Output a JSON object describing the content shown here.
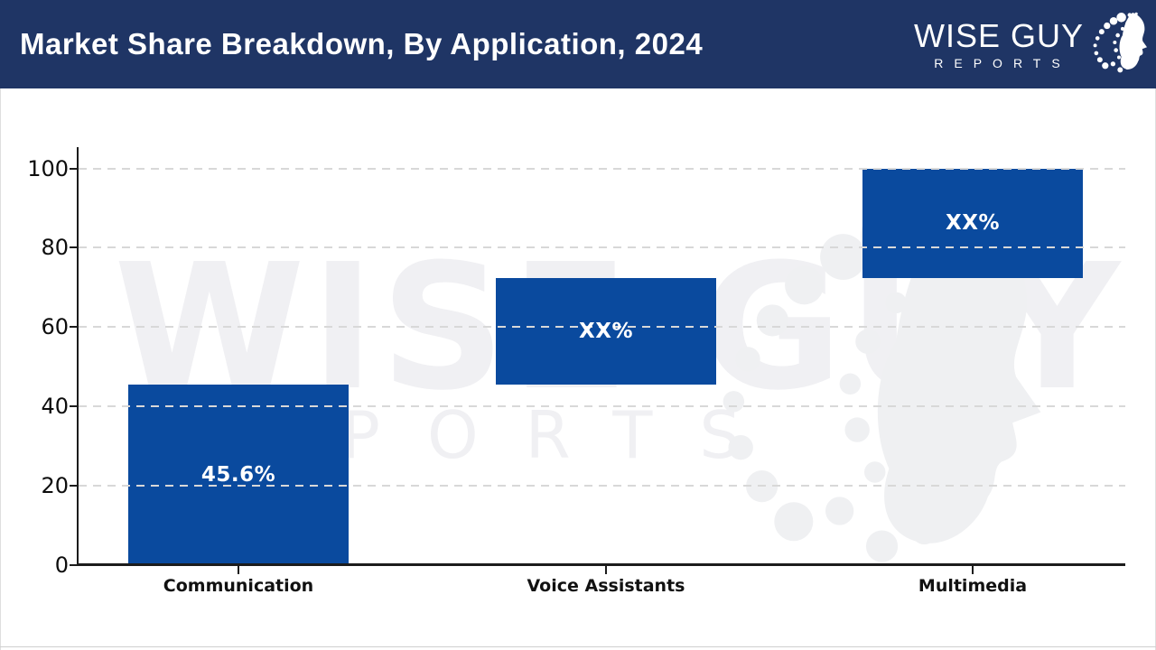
{
  "header": {
    "title": "Market Share Breakdown, By Application, 2024",
    "bg_color": "#1f3565",
    "logo": {
      "line1": "WISE GUY",
      "line2": "REPORTS"
    }
  },
  "watermark": {
    "line1": "WISE GUY",
    "line2": "REPORTS"
  },
  "chart_data": {
    "type": "bar",
    "variant": "floating-segment (waterfall style market share)",
    "title": "Market Share Breakdown, By Application, 2024",
    "categories": [
      "Communication",
      "Voice Assistants",
      "Multimedia"
    ],
    "segments": [
      {
        "category": "Communication",
        "start": 0,
        "end": 45.6,
        "label": "45.6%"
      },
      {
        "category": "Voice Assistants",
        "start": 45.6,
        "end": 72.3,
        "label": "XX%"
      },
      {
        "category": "Multimedia",
        "start": 72.3,
        "end": 100,
        "label": "XX%"
      }
    ],
    "xlabel": "",
    "ylabel": "",
    "ylim": [
      0,
      100
    ],
    "yticks": [
      0,
      20,
      40,
      60,
      80,
      100
    ],
    "grid": {
      "axis": "y",
      "style": "dashed",
      "color": "#d8d8d8",
      "drawn_over_bars": true
    },
    "bar_color": "#0a4a9e",
    "bar_label_color": "#ffffff",
    "axis_color": "#1c1c1c",
    "legend": null
  }
}
